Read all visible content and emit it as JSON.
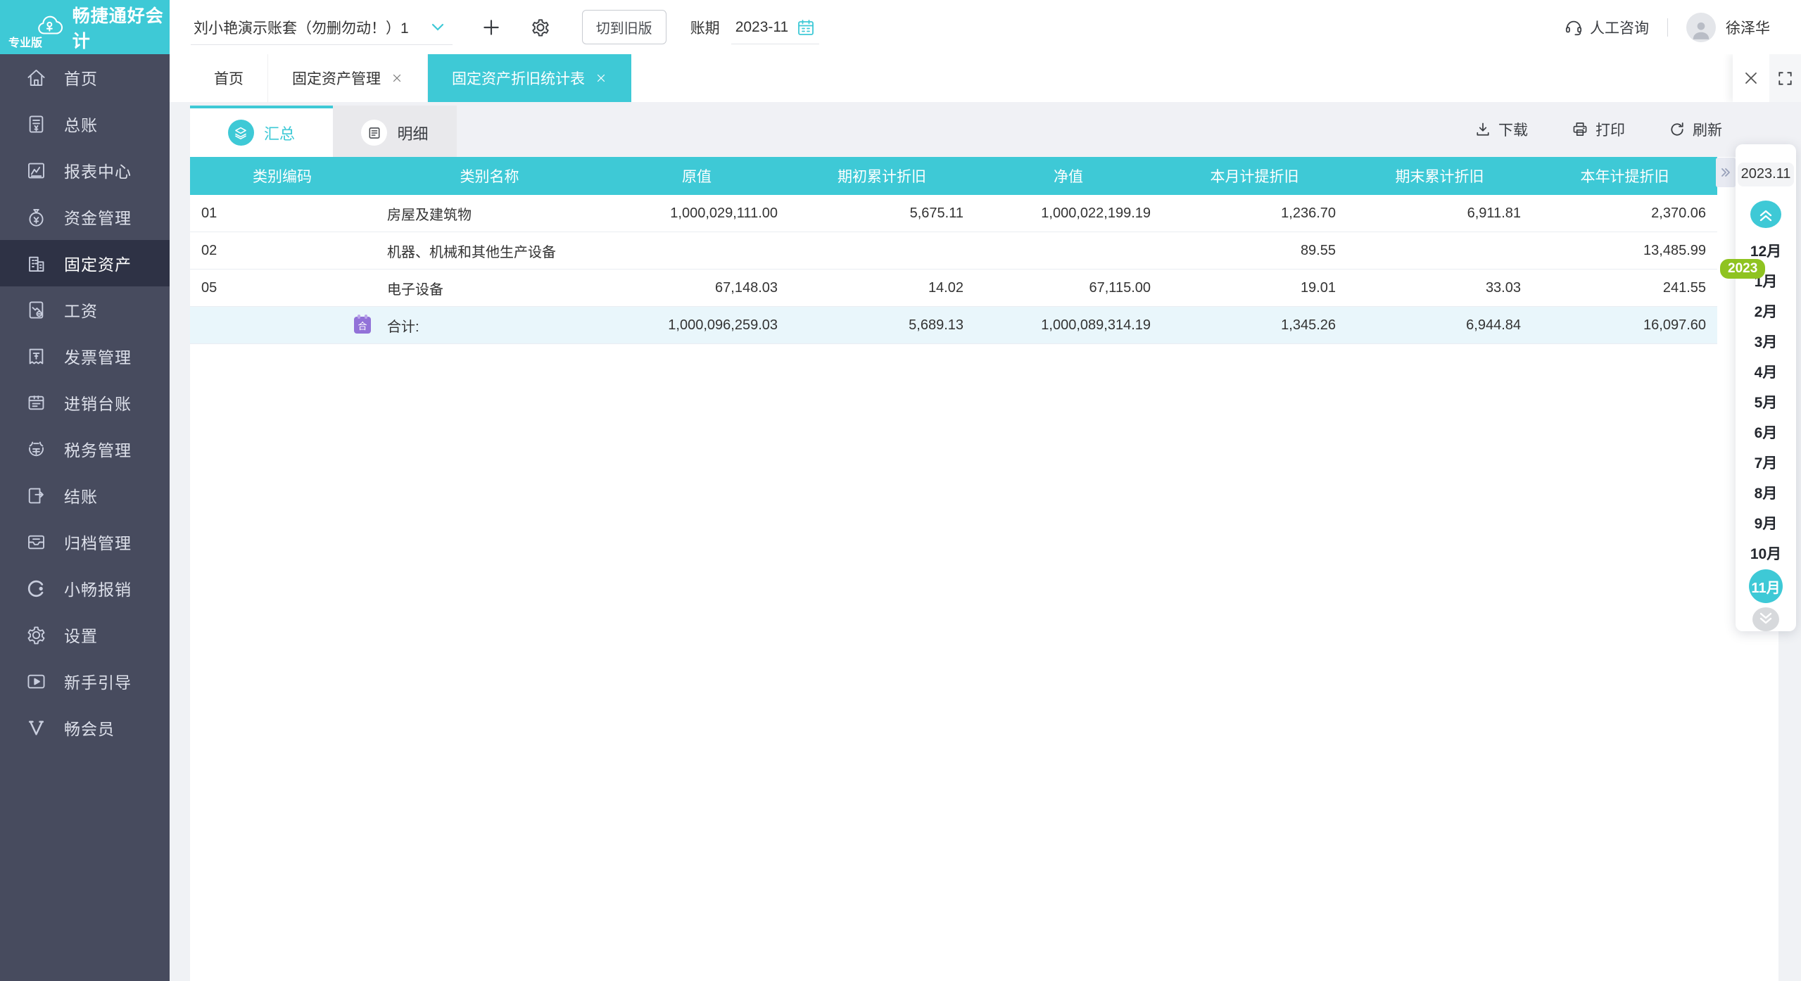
{
  "topbar": {
    "brand": "畅捷通好会计",
    "edition": "专业版",
    "account": "刘小艳演示账套（勿删勿动！）1",
    "switch_old_label": "切到旧版",
    "period_label": "账期",
    "period_value": "2023-11",
    "support_label": "人工咨询",
    "user_name": "徐泽华"
  },
  "sidebar": {
    "items": [
      {
        "id": "home",
        "label": "首页",
        "icon": "home",
        "active": false
      },
      {
        "id": "ledger",
        "label": "总账",
        "icon": "ledger",
        "active": false
      },
      {
        "id": "reports",
        "label": "报表中心",
        "icon": "report",
        "active": false
      },
      {
        "id": "funds",
        "label": "资金管理",
        "icon": "funds",
        "active": false
      },
      {
        "id": "assets",
        "label": "固定资产",
        "icon": "assets",
        "active": true
      },
      {
        "id": "salary",
        "label": "工资",
        "icon": "salary",
        "active": false
      },
      {
        "id": "invoice",
        "label": "发票管理",
        "icon": "invoice",
        "active": false
      },
      {
        "id": "stock",
        "label": "进销台账",
        "icon": "stock",
        "active": false
      },
      {
        "id": "tax",
        "label": "税务管理",
        "icon": "tax",
        "active": false
      },
      {
        "id": "closing",
        "label": "结账",
        "icon": "closing",
        "active": false
      },
      {
        "id": "archive",
        "label": "归档管理",
        "icon": "archive",
        "active": false
      },
      {
        "id": "reimburse",
        "label": "小畅报销",
        "icon": "reimburse",
        "active": false
      },
      {
        "id": "settings",
        "label": "设置",
        "icon": "settings",
        "active": false
      },
      {
        "id": "guide",
        "label": "新手引导",
        "icon": "guide",
        "active": false
      },
      {
        "id": "member",
        "label": "畅会员",
        "icon": "member",
        "active": false
      }
    ]
  },
  "tabs": [
    {
      "label": "首页",
      "closable": false,
      "active": false
    },
    {
      "label": "固定资产管理",
      "closable": true,
      "active": false
    },
    {
      "label": "固定资产折旧统计表",
      "closable": true,
      "active": true
    }
  ],
  "toolbar": {
    "views": [
      {
        "label": "汇总",
        "icon": "layers",
        "active": true
      },
      {
        "label": "明细",
        "icon": "detail",
        "active": false
      }
    ],
    "actions": [
      {
        "id": "download",
        "label": "下载",
        "icon": "download"
      },
      {
        "id": "print",
        "label": "打印",
        "icon": "print"
      },
      {
        "id": "refresh",
        "label": "刷新",
        "icon": "refresh"
      }
    ]
  },
  "table": {
    "columns": [
      "类别编码",
      "类别名称",
      "原值",
      "期初累计折旧",
      "净值",
      "本月计提折旧",
      "期末累计折旧",
      "本年计提折旧"
    ],
    "rows": [
      [
        "01",
        "房屋及建筑物",
        "1,000,029,111.00",
        "5,675.11",
        "1,000,022,199.19",
        "1,236.70",
        "6,911.81",
        "2,370.06"
      ],
      [
        "02",
        "机器、机械和其他生产设备",
        "",
        "",
        "",
        "89.55",
        "",
        "13,485.99"
      ],
      [
        "05",
        "电子设备",
        "67,148.03",
        "14.02",
        "67,115.00",
        "19.01",
        "33.03",
        "241.55"
      ]
    ],
    "total_label": "合计:",
    "total_icon_glyph": "合",
    "totals": [
      "1,000,096,259.03",
      "5,689.13",
      "1,000,089,314.19",
      "1,345.26",
      "6,944.84",
      "16,097.60"
    ]
  },
  "month_panel": {
    "current": "2023.11",
    "year_badge": "2023",
    "months": [
      "12月",
      "1月",
      "2月",
      "3月",
      "4月",
      "5月",
      "6月",
      "7月",
      "8月",
      "9月",
      "10月",
      "11月"
    ],
    "selected": "11月"
  },
  "colors": {
    "brand_teal": "#3ec9d6",
    "sidebar_bg": "#474b5e",
    "sidebar_active_bg": "#2e3245",
    "table_header_bg": "#3ec9d6",
    "total_row_bg": "#e9f6fb",
    "year_badge_green": "#8fc321",
    "total_icon_purple": "#9272d8"
  }
}
